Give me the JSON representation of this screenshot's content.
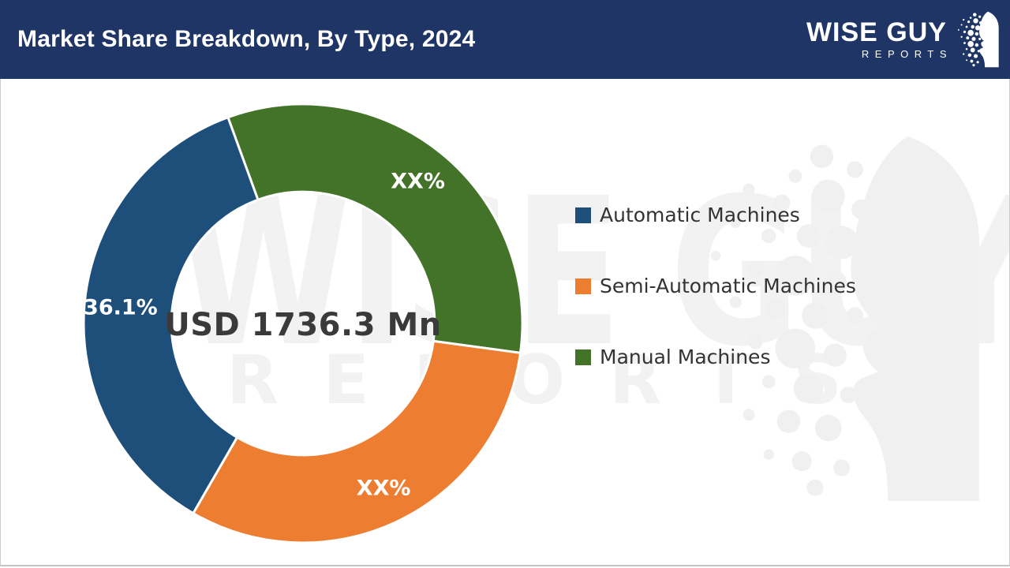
{
  "header": {
    "title": "Market Share Breakdown, By Type, 2024",
    "logo_line1": "WISE GUY",
    "logo_line2": "REPORTS",
    "bg_color": "#1f3566"
  },
  "watermark": {
    "line1": "WISE GUY",
    "line2": "REPORTS"
  },
  "chart_data": {
    "type": "pie",
    "subtype": "donut",
    "title": "Market Share Breakdown, By Type, 2024",
    "center_label": "USD 1736.3 Mn",
    "start_angle_clockwise_from_top_deg": -20,
    "inner_radius_ratio": 0.6,
    "legend_position": "right",
    "segments": [
      {
        "name": "Manual Machines",
        "slice_label": "XX%",
        "pct": 32.7,
        "color": "#427328"
      },
      {
        "name": "Semi-Automatic Machines",
        "slice_label": "XX%",
        "pct": 31.2,
        "color": "#ed7d31"
      },
      {
        "name": "Automatic Machines",
        "slice_label": "36.1%",
        "pct": 36.1,
        "color": "#1e4e7a"
      }
    ],
    "legend": [
      {
        "label": "Automatic Machines",
        "color": "#1e4e7a"
      },
      {
        "label": "Semi-Automatic Machines",
        "color": "#ed7d31"
      },
      {
        "label": "Manual Machines",
        "color": "#427328"
      }
    ]
  },
  "colors": {
    "header_bg": "#1f3566",
    "text_dark": "#333333",
    "slice_label_text": "#ffffff",
    "watermark": "#f2f2f2",
    "border": "#cccccc"
  }
}
